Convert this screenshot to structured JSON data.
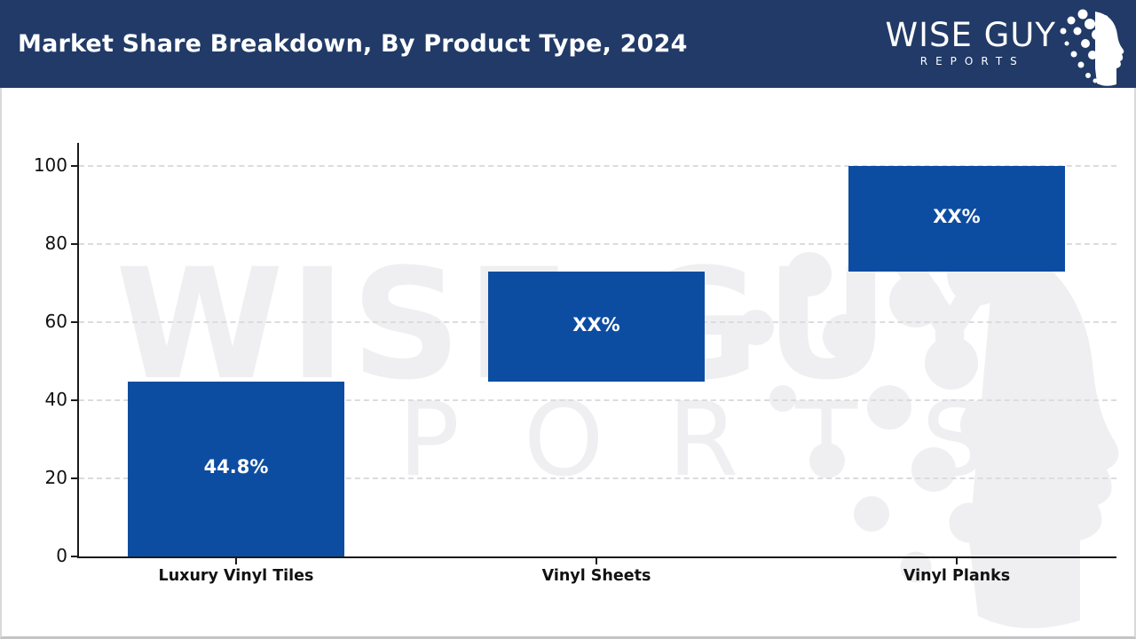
{
  "header": {
    "title": "Market Share Breakdown, By Product Type, 2024",
    "bg_color": "#213a67",
    "logo": {
      "line1": "WISE GUY",
      "line2": "REPORTS"
    }
  },
  "watermark": {
    "line1": "WISE GUY",
    "line2": "REPORTS"
  },
  "chart_data": {
    "type": "bar",
    "subtype": "cumulative-waterfall",
    "title": "Market Share Breakdown, By Product Type, 2024",
    "categories": [
      "Luxury Vinyl Tiles",
      "Vinyl Sheets",
      "Vinyl Planks"
    ],
    "bars": [
      {
        "category": "Luxury Vinyl Tiles",
        "start": 0,
        "end": 44.8,
        "label": "44.8%"
      },
      {
        "category": "Vinyl Sheets",
        "start": 44.8,
        "end": 73,
        "label": "XX%"
      },
      {
        "category": "Vinyl Planks",
        "start": 73,
        "end": 100,
        "label": "XX%"
      }
    ],
    "xlabel": "",
    "ylabel": "",
    "ylim": [
      0,
      100
    ],
    "yticks": [
      0,
      20,
      40,
      60,
      80,
      100
    ],
    "grid": "horizontal-dashed",
    "legend": "none",
    "bar_color": "#0d4da1",
    "bar_label_color": "#ffffff",
    "axis_color": "#1a1a1a",
    "gridline_color": "#dcdcdc"
  }
}
